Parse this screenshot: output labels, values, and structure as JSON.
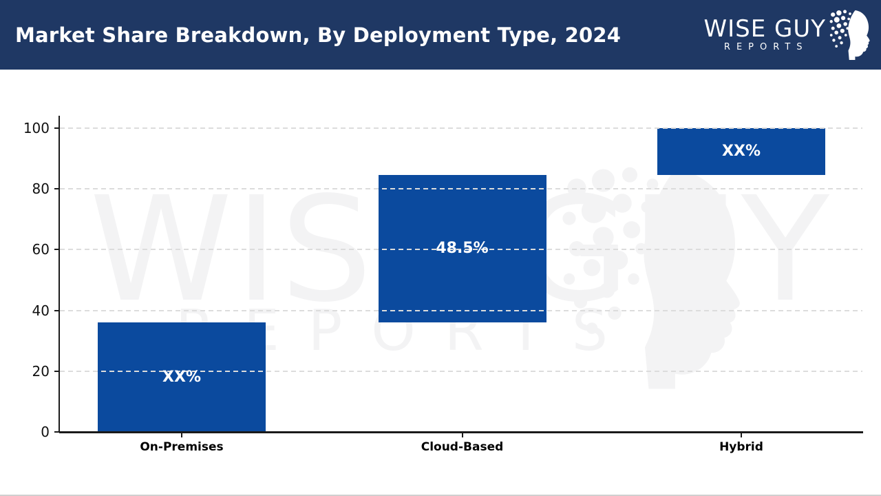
{
  "header": {
    "title": "Market Share Breakdown, By Deployment Type, 2024",
    "logo": {
      "line1": "WISE GUY",
      "line2": "REPORTS",
      "head_icon": "head-profile-dots-icon"
    }
  },
  "watermark": {
    "line1": "WISE GUY",
    "line2": "REPORTS",
    "head_icon": "head-profile-dots-icon"
  },
  "colors": {
    "header_bg": "#1f3864",
    "bar": "#0b4a9e",
    "bar_label": "#ffffff",
    "grid": "#dcdcdc",
    "axis": "#1a1a1a",
    "tick_text": "#111111",
    "watermark": "#f3f3f4",
    "page_bg": "#ffffff",
    "bottom_border": "#cfcfcf"
  },
  "chart_data": {
    "type": "bar",
    "subtype": "waterfall",
    "title": "Market Share Breakdown, By Deployment Type, 2024",
    "categories": [
      "On-Premises",
      "Cloud-Based",
      "Hybrid"
    ],
    "series": [
      {
        "name": "Market share (%)",
        "segments": [
          {
            "category": "On-Premises",
            "start": 0,
            "end": 36,
            "value_est": 36,
            "value_label": "XX%"
          },
          {
            "category": "Cloud-Based",
            "start": 36,
            "end": 84.5,
            "value_est": 48.5,
            "value_label": "48.5%"
          },
          {
            "category": "Hybrid",
            "start": 84.5,
            "end": 100,
            "value_est": 15.5,
            "value_label": "XX%"
          }
        ]
      }
    ],
    "xlabel": "",
    "ylabel": "",
    "ylim": [
      0,
      100
    ],
    "yticks": [
      0,
      20,
      40,
      60,
      80,
      100
    ],
    "grid": "horizontal-dashed",
    "gridline_on_top_of_bars": true,
    "legend": "none"
  }
}
